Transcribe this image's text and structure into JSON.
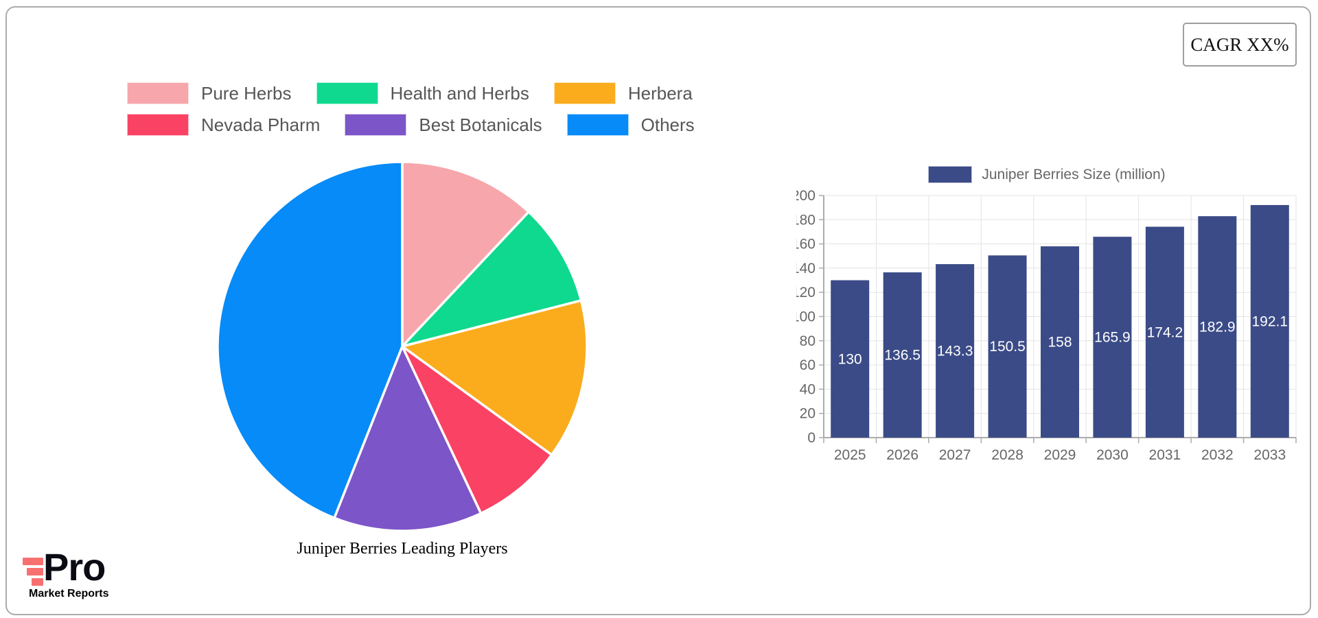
{
  "cagr": {
    "label": "CAGR XX%"
  },
  "logo": {
    "name": "Pro",
    "subtitle": "Market Reports",
    "bar_color": "#F87070"
  },
  "colors": {
    "legend_text": "#565656",
    "axis_text": "#666666",
    "gridline": "#E3E3E3",
    "axis_line": "#ABABAB",
    "frame_border": "#ABABAB",
    "value_label_text": "#FFFFFF"
  },
  "chart_data": [
    {
      "type": "pie",
      "title": "Juniper Berries Leading Players",
      "labels": [
        "Pure Herbs",
        "Health and Herbs",
        "Herbera",
        "Nevada Pharm",
        "Best Botanicals",
        "Others"
      ],
      "values": [
        12,
        9,
        14,
        8,
        13,
        44
      ],
      "colors": [
        "#F7A6AC",
        "#0FD98F",
        "#FBAC1C",
        "#FA4264",
        "#7C55C8",
        "#078BF8"
      ],
      "start_angle_deg": 0,
      "direction": "clockwise",
      "legend_position": "top",
      "legend_rows": 2,
      "legend_items_per_row": 3
    },
    {
      "type": "bar",
      "legend": "Juniper Berries Size (million)",
      "categories": [
        "2025",
        "2026",
        "2027",
        "2028",
        "2029",
        "2030",
        "2031",
        "2032",
        "2033"
      ],
      "values": [
        130,
        136.5,
        143.3,
        150.5,
        158,
        165.9,
        174.2,
        182.9,
        192.1
      ],
      "bar_color": "#3B4B87",
      "ylim": [
        0,
        200
      ],
      "ytick_step": 20,
      "grid": true,
      "legend_position": "top",
      "value_labels": "inside-center-white"
    }
  ]
}
